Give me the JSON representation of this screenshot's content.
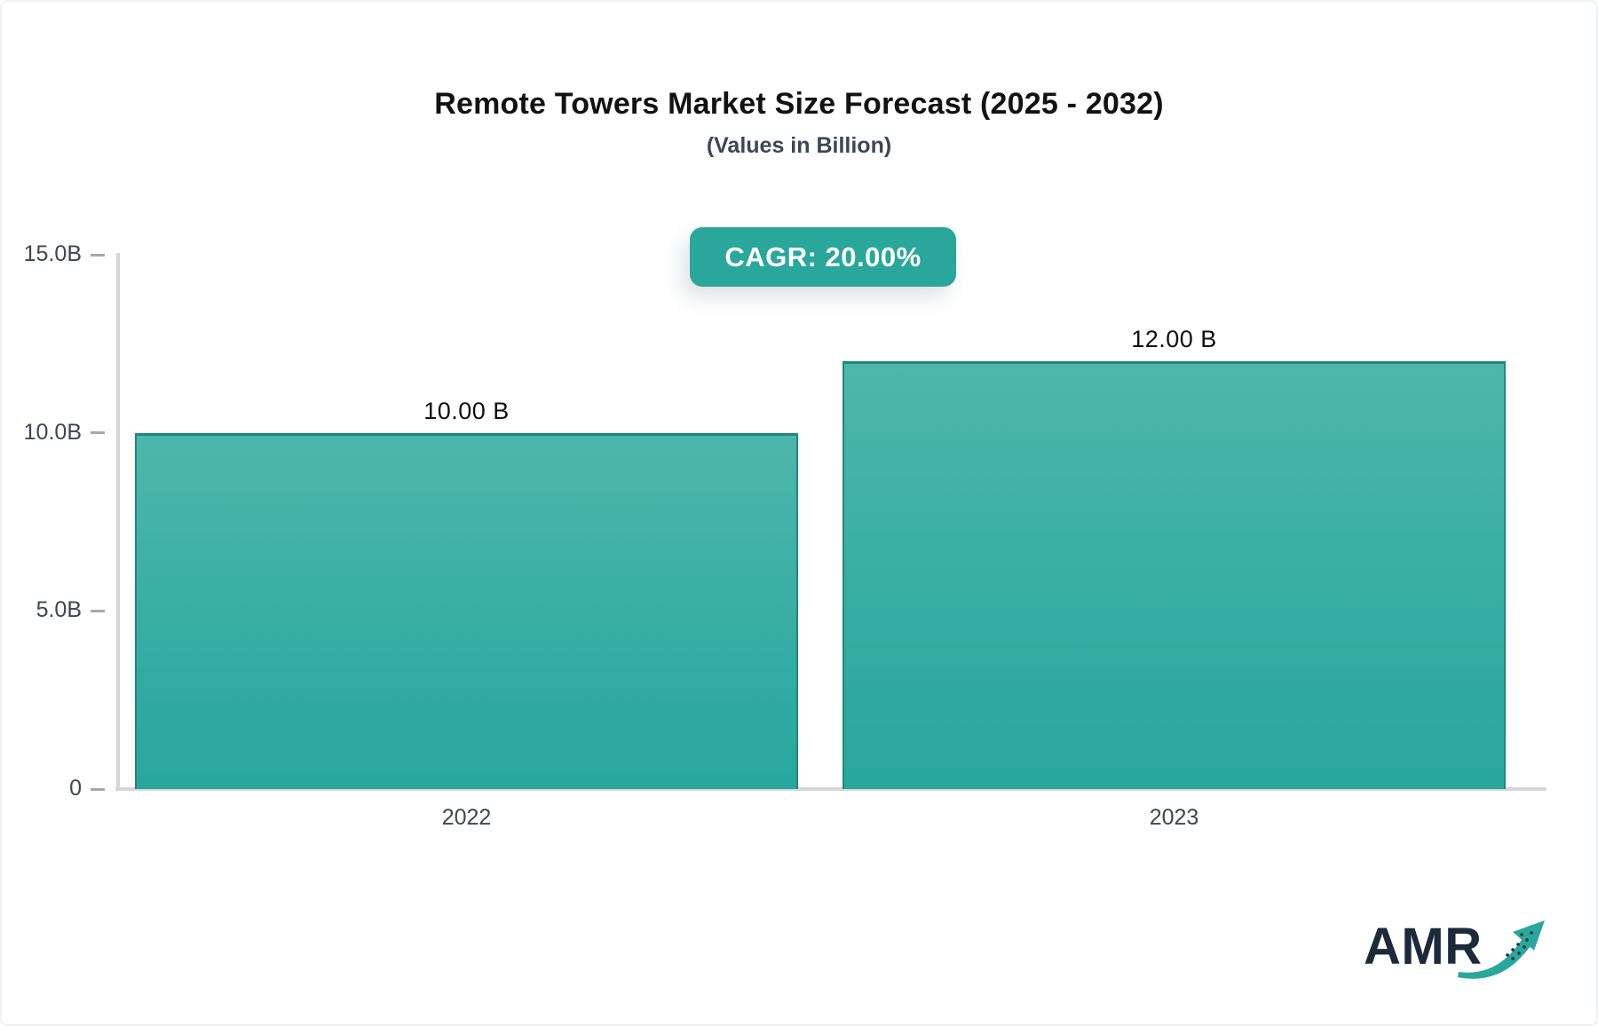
{
  "chart_data": {
    "type": "bar",
    "title": "Remote Towers Market Size Forecast (2025 - 2032)",
    "subtitle": "(Values in Billion)",
    "cagr_label": "CAGR: 20.00%",
    "categories": [
      "2022",
      "2023"
    ],
    "values": [
      10.0,
      12.0
    ],
    "value_labels": [
      "10.00 B",
      "12.00 B"
    ],
    "ylim": [
      0,
      15
    ],
    "yticks": [
      15,
      10,
      5,
      0
    ],
    "ytick_labels": [
      "15.0B",
      "10.0B",
      "5.0B",
      "0"
    ],
    "grid": false,
    "legend": "none"
  },
  "colors": {
    "accent_teal": "#2aa79b",
    "bar_fill_top": "#4eb6ad",
    "bar_fill_bottom": "#27a79b",
    "bar_border": "#1d897d",
    "axis_line": "#d4d6db",
    "tick_label": "#3e4653",
    "title_text": "#121212",
    "badge_text": "#ffffff",
    "logo_navy": "#1c2b3a"
  },
  "logo": {
    "text": "AMR",
    "arrow_icon": "growth-arrow-icon"
  }
}
